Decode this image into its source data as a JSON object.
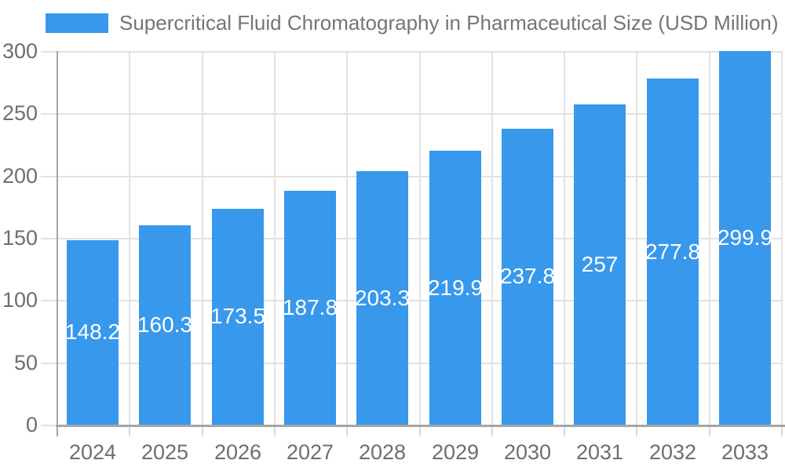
{
  "chart_data": {
    "type": "bar",
    "title": "Supercritical Fluid Chromatography in Pharmaceutical Size (USD Million)",
    "categories": [
      "2024",
      "2025",
      "2026",
      "2027",
      "2028",
      "2029",
      "2030",
      "2031",
      "2032",
      "2033"
    ],
    "values": [
      148.2,
      160.3,
      173.5,
      187.8,
      203.3,
      219.9,
      237.8,
      257,
      277.8,
      299.9
    ],
    "xlabel": "",
    "ylabel": "",
    "ylim": [
      0,
      300
    ],
    "yticks": [
      0,
      50,
      100,
      150,
      200,
      250,
      300
    ],
    "grid": true,
    "legend_position": "top-left",
    "colors": {
      "bar": "#3898EC",
      "grid": "#E2E2E2",
      "axis": "#A6A6A6",
      "outer_tick": "#D9D9D9",
      "axis_text": "#6E6E6E",
      "title_text": "#757575",
      "value_text": "#FFFFFF",
      "background": "#FFFFFF"
    }
  }
}
